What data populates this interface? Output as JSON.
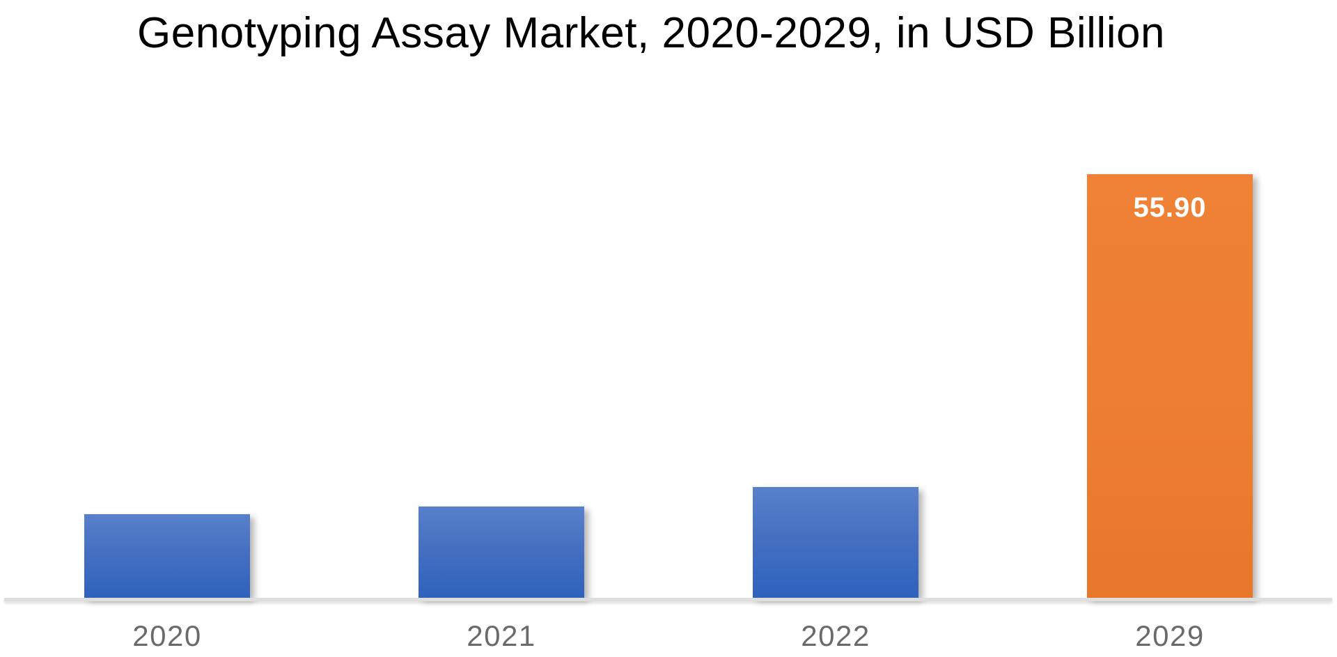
{
  "page": {
    "background": "#FFFFFF"
  },
  "title": {
    "text": "Genotyping Assay Market, 2020-2029, in USD Billion"
  },
  "chart_data": {
    "type": "bar",
    "title": "Genotyping Assay Market, 2020-2029, in USD Billion",
    "categories": [
      "2020",
      "2021",
      "2022",
      "2029"
    ],
    "values": [
      11.0,
      12.0,
      14.6,
      55.9
    ],
    "value_labels": [
      "",
      "",
      "",
      "55.90"
    ],
    "xlabel": "",
    "ylabel": "",
    "ylim": [
      0,
      55.9
    ],
    "grid": false,
    "legend": false,
    "y_axis_visible": false,
    "x_axis_line_visible": true,
    "colors": {
      "bar_blue_gradient_top": "#5880CB",
      "bar_blue_gradient_bottom": "#2F62BC",
      "bar_orange": "#ED7D31",
      "value_label_text": "#FFFFFF",
      "tick_label_text": "#6A6A6A",
      "title_text": "#000000",
      "axis_line": "#DEDEDE"
    }
  }
}
